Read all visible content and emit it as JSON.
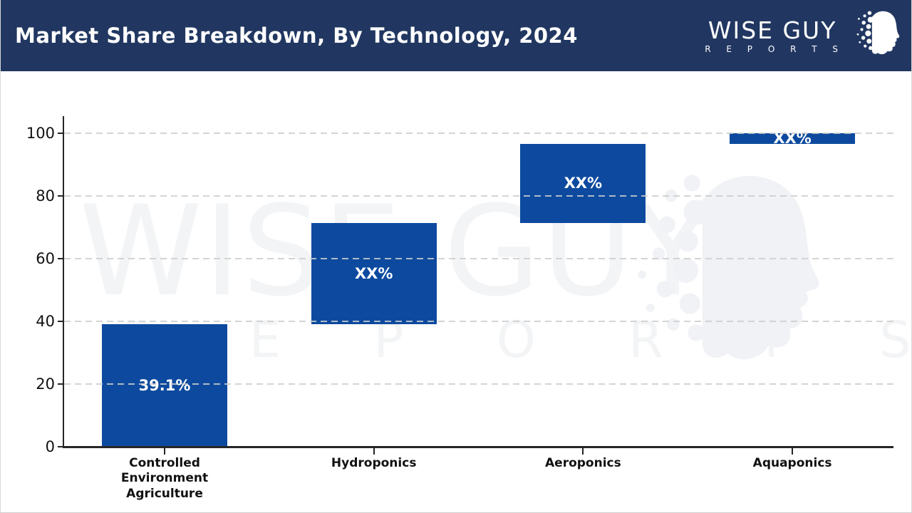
{
  "header": {
    "title": "Market Share Breakdown, By Technology, 2024",
    "bg_color": "#213761",
    "logo_line1": "WISE GUY",
    "logo_line2": "R E P O R T S"
  },
  "watermark": {
    "line1": "WISE GUY",
    "line2": "R E P O R T S"
  },
  "chart_data": {
    "type": "bar",
    "subtype": "waterfall",
    "title": "Market Share Breakdown, By Technology, 2024",
    "categories": [
      "Controlled\nEnvironment\nAgriculture",
      "Hydroponics",
      "Aeroponics",
      "Aquaponics"
    ],
    "segments": [
      {
        "category": "Controlled\nEnvironment\nAgriculture",
        "start": 0,
        "end": 39.1,
        "value_label": "39.1%"
      },
      {
        "category": "Hydroponics",
        "start": 39.1,
        "end": 71.4,
        "value_label": "XX%"
      },
      {
        "category": "Aeroponics",
        "start": 71.4,
        "end": 96.6,
        "value_label": "XX%"
      },
      {
        "category": "Aquaponics",
        "start": 96.6,
        "end": 100.0,
        "value_label": "XX%"
      }
    ],
    "yticks": [
      0,
      20,
      40,
      60,
      80,
      100
    ],
    "ylim": [
      0,
      105
    ],
    "xlabel": "",
    "ylabel": "",
    "bar_color": "#0d4a9f",
    "grid": "horizontal-dashed",
    "grid_on_top_of_bars": true,
    "axis_color": "#262626",
    "legend": "none"
  }
}
